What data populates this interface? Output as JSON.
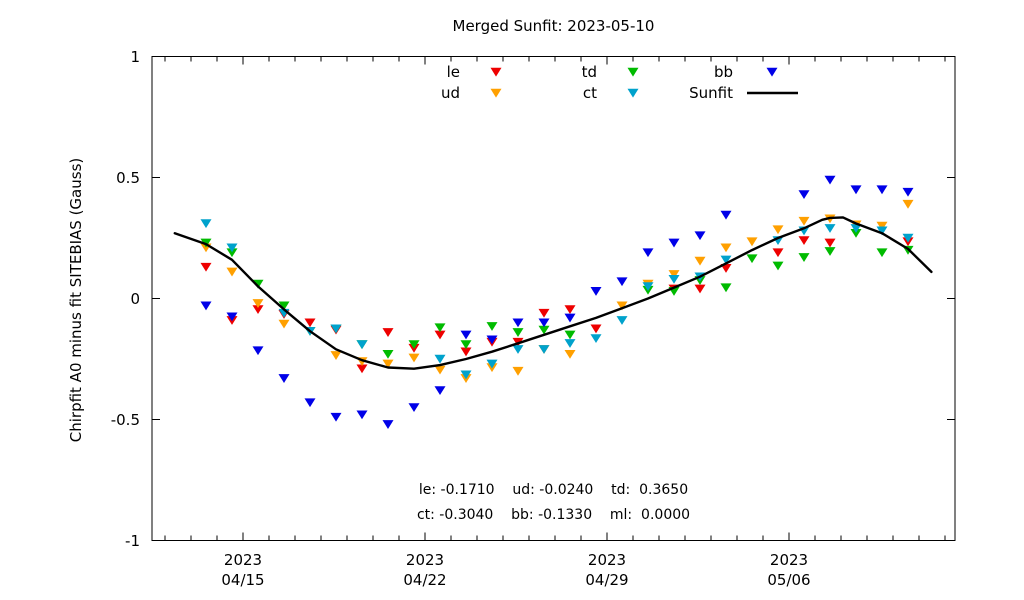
{
  "title": "Merged Sunfit: 2023-05-10",
  "axes": {
    "ylabel": "Chirpfit A0 minus fit SITEBIAS (Gauss)",
    "ytick_labels": [
      "1",
      "0.5",
      "0",
      "-0.5",
      "-1"
    ],
    "ytick_values": [
      1,
      0.5,
      0,
      -0.5,
      -1
    ],
    "xtick_labels": [
      {
        "year": "2023",
        "date": "04/15"
      },
      {
        "year": "2023",
        "date": "04/22"
      },
      {
        "year": "2023",
        "date": "04/29"
      },
      {
        "year": "2023",
        "date": "05/06"
      }
    ]
  },
  "legend": {
    "items": [
      {
        "label": "le",
        "series": "le",
        "row": 0,
        "col": 0
      },
      {
        "label": "ud",
        "series": "ud",
        "row": 1,
        "col": 0
      },
      {
        "label": "td",
        "series": "td",
        "row": 0,
        "col": 1
      },
      {
        "label": "ct",
        "series": "ct",
        "row": 1,
        "col": 1
      },
      {
        "label": "bb",
        "series": "bb",
        "row": 0,
        "col": 2
      },
      {
        "label": "Sunfit",
        "series": "fit",
        "row": 1,
        "col": 2
      }
    ]
  },
  "annotation": {
    "rows": [
      [
        [
          "le",
          "-0.1710"
        ],
        [
          "ud",
          "-0.0240"
        ],
        [
          "td",
          " 0.3650"
        ]
      ],
      [
        [
          "ct",
          "-0.3040"
        ],
        [
          "bb",
          "-0.1330"
        ],
        [
          "ml",
          " 0.0000"
        ]
      ]
    ]
  },
  "chart_data": {
    "type": "scatter",
    "title": "Merged Sunfit: 2023-05-10",
    "xlabel": "",
    "ylabel": "Chirpfit A0 minus fit SITEBIAS (Gauss)",
    "ylim": [
      -1,
      1
    ],
    "x_dates": [
      "04/13",
      "04/14",
      "04/15",
      "04/16",
      "04/17",
      "04/18",
      "04/19",
      "04/20",
      "04/21",
      "04/22",
      "04/23",
      "04/24",
      "04/25",
      "04/26",
      "04/27",
      "04/28",
      "04/29",
      "04/30",
      "05/01",
      "05/02",
      "05/03",
      "05/04",
      "05/05",
      "05/06",
      "05/07",
      "05/08",
      "05/09",
      "05/10"
    ],
    "marker": "triangle-down",
    "legend_position": "top-center-inside",
    "grid": false,
    "series": [
      {
        "name": "le",
        "color": "#ee0000",
        "values": [
          0.13,
          -0.09,
          -0.045,
          -0.065,
          -0.1,
          -0.13,
          -0.29,
          -0.14,
          -0.205,
          -0.15,
          -0.22,
          -0.18,
          -0.18,
          -0.06,
          -0.045,
          -0.125,
          null,
          null,
          0.04,
          0.04,
          0.125,
          null,
          0.19,
          0.24,
          0.23,
          null,
          null,
          0.235
        ]
      },
      {
        "name": "ud",
        "color": "#ffa000",
        "values": [
          0.21,
          0.11,
          -0.02,
          -0.105,
          null,
          -0.235,
          -0.26,
          -0.27,
          -0.245,
          -0.295,
          -0.33,
          -0.285,
          -0.3,
          -0.21,
          -0.23,
          null,
          -0.03,
          0.06,
          0.1,
          0.155,
          0.21,
          0.235,
          0.285,
          0.32,
          0.33,
          0.305,
          0.3,
          0.39
        ]
      },
      {
        "name": "td",
        "color": "#00bb00",
        "values": [
          0.23,
          0.19,
          0.06,
          -0.03,
          -0.135,
          -0.125,
          -0.19,
          -0.23,
          -0.19,
          -0.12,
          -0.19,
          -0.115,
          -0.14,
          -0.13,
          -0.15,
          null,
          null,
          0.035,
          0.03,
          0.075,
          0.045,
          0.165,
          0.135,
          0.17,
          0.195,
          0.27,
          0.19,
          0.2
        ]
      },
      {
        "name": "ct",
        "color": "#00a2cc",
        "values": [
          0.31,
          0.21,
          null,
          -0.06,
          -0.135,
          -0.125,
          -0.19,
          null,
          null,
          -0.25,
          -0.315,
          -0.27,
          -0.21,
          -0.21,
          -0.185,
          -0.165,
          -0.09,
          0.05,
          0.08,
          0.09,
          0.16,
          null,
          0.24,
          0.28,
          0.29,
          0.29,
          0.28,
          0.25
        ]
      },
      {
        "name": "bb",
        "color": "#0000e8",
        "values": [
          -0.03,
          -0.075,
          -0.215,
          -0.33,
          -0.43,
          -0.49,
          -0.48,
          -0.52,
          -0.45,
          -0.38,
          -0.15,
          -0.17,
          -0.1,
          -0.1,
          -0.08,
          0.03,
          0.07,
          0.19,
          0.23,
          0.26,
          0.345,
          null,
          null,
          0.43,
          0.49,
          0.45,
          0.45,
          0.44
        ]
      }
    ],
    "fit_line": {
      "name": "Sunfit",
      "color": "#000000",
      "points": [
        [
          -1.2,
          0.27
        ],
        [
          0,
          0.225
        ],
        [
          1,
          0.16
        ],
        [
          2,
          0.05
        ],
        [
          3,
          -0.045
        ],
        [
          4,
          -0.135
        ],
        [
          5,
          -0.21
        ],
        [
          6,
          -0.255
        ],
        [
          7,
          -0.285
        ],
        [
          8,
          -0.29
        ],
        [
          9,
          -0.275
        ],
        [
          10,
          -0.25
        ],
        [
          11,
          -0.22
        ],
        [
          12,
          -0.185
        ],
        [
          13,
          -0.15
        ],
        [
          14,
          -0.115
        ],
        [
          15,
          -0.08
        ],
        [
          16,
          -0.04
        ],
        [
          17,
          0.0
        ],
        [
          18,
          0.045
        ],
        [
          19,
          0.09
        ],
        [
          20,
          0.145
        ],
        [
          21,
          0.2
        ],
        [
          22,
          0.25
        ],
        [
          23,
          0.29
        ],
        [
          23.7,
          0.325
        ],
        [
          24,
          0.333
        ],
        [
          24.5,
          0.335
        ],
        [
          25,
          0.31
        ],
        [
          26,
          0.27
        ],
        [
          27,
          0.205
        ],
        [
          27.9,
          0.11
        ]
      ]
    }
  }
}
